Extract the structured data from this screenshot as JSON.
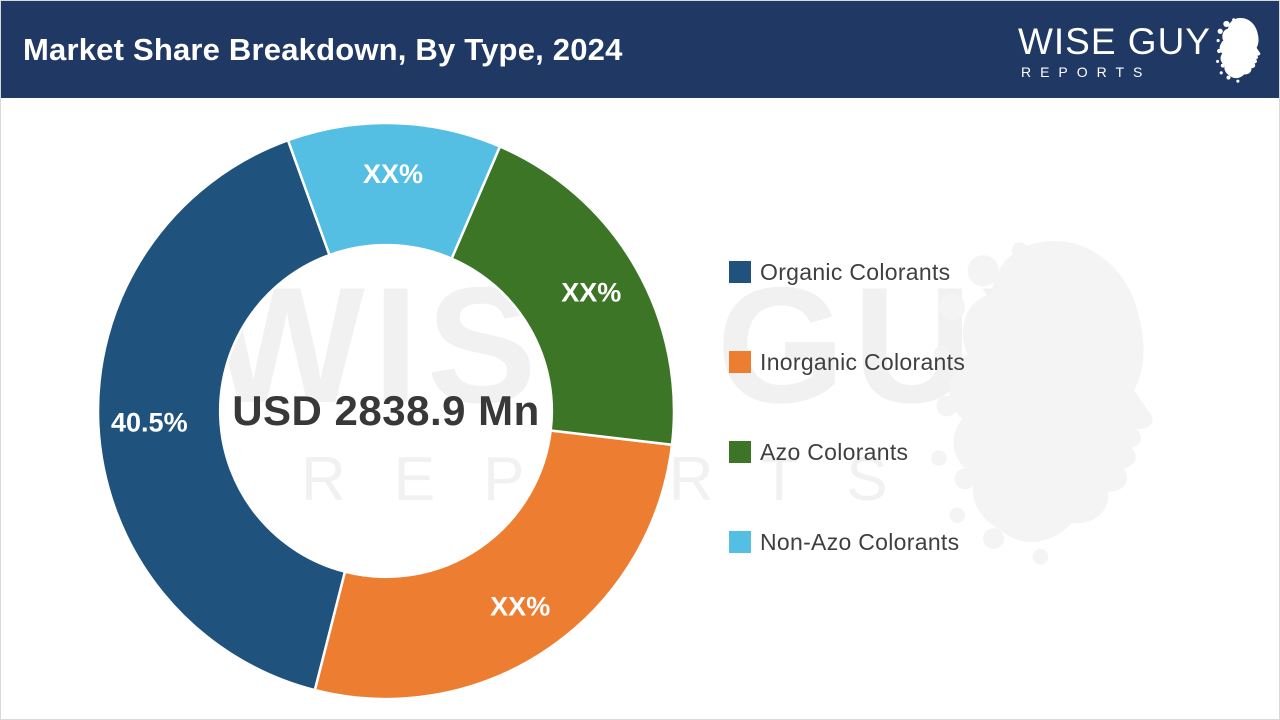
{
  "header": {
    "title": "Market Share Breakdown, By Type, 2024",
    "bg_color": "#1F3864",
    "logo": {
      "line1": "WISE GUY",
      "line2": "REPORTS"
    }
  },
  "watermark": {
    "line1": "WISE GUY",
    "line2": "REPORTS"
  },
  "center_label": "USD 2838.9 Mn",
  "legend": [
    {
      "label": "Organic Colorants",
      "color": "#1F537E"
    },
    {
      "label": "Inorganic Colorants",
      "color": "#ED7D31"
    },
    {
      "label": "Azo Colorants",
      "color": "#3D7527"
    },
    {
      "label": "Non-Azo Colorants",
      "color": "#55BEE3"
    }
  ],
  "chart_data": {
    "type": "pie",
    "subtype": "donut",
    "title": "Market Share Breakdown, By Type, 2024",
    "center_total": "USD 2838.9 Mn",
    "categories": [
      "Organic Colorants",
      "Inorganic Colorants",
      "Azo Colorants",
      "Non-Azo Colorants"
    ],
    "values": [
      40.5,
      27.1,
      20.4,
      12.0
    ],
    "display_labels": [
      "40.5%",
      "XX%",
      "XX%",
      "XX%"
    ],
    "colors": [
      "#1F537E",
      "#ED7D31",
      "#3D7527",
      "#55BEE3"
    ],
    "start_angle_deg": 109.9,
    "direction": "counterclockwise",
    "inner_radius_ratio": 0.576,
    "legend_position": "right",
    "slice_gap_color": "#ffffff"
  }
}
